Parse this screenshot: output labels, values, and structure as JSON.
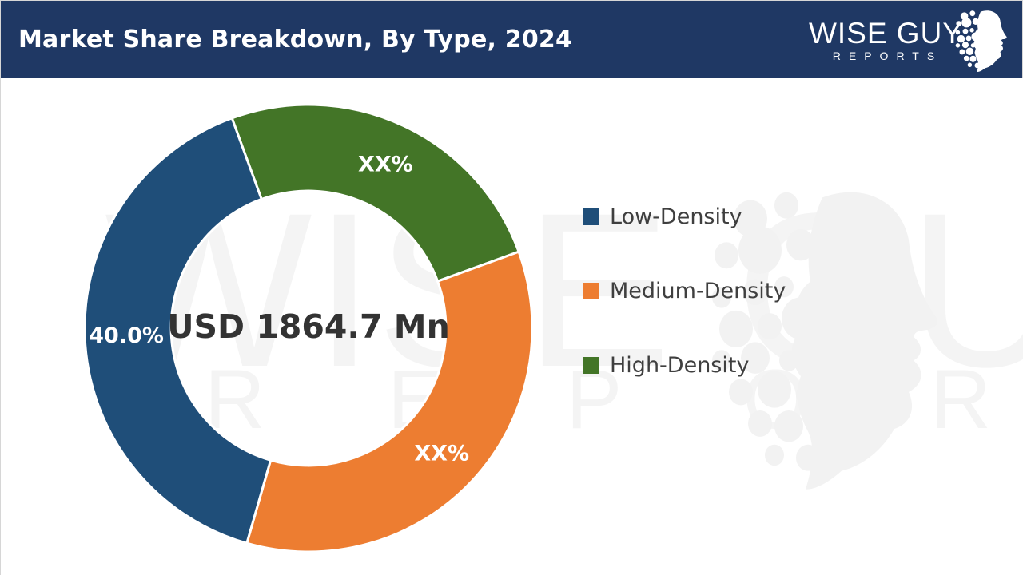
{
  "header": {
    "title": "Market Share Breakdown, By Type, 2024",
    "logo": {
      "line1": "WISE GUY",
      "line2": "REPORTS"
    }
  },
  "watermark": {
    "line1": "WISE GUY",
    "line2": "R E P O R T S"
  },
  "chart_data": {
    "type": "donut",
    "title": "Market Share Breakdown, By Type, 2024",
    "center_label": "USD 1864.7 Mn",
    "start_angle_deg": -20,
    "draw_order": [
      "High-Density",
      "Medium-Density",
      "Low-Density"
    ],
    "legend_position": "right",
    "segments": [
      {
        "label": "Low-Density",
        "value": 40.0,
        "display": "40.0%",
        "color": "#1F4E79"
      },
      {
        "label": "Medium-Density",
        "value": 35.0,
        "display": "XX%",
        "color": "#ED7D31"
      },
      {
        "label": "High-Density",
        "value": 25.0,
        "display": "XX%",
        "color": "#437527"
      }
    ]
  },
  "colors": {
    "header_bg": "#1F3864",
    "page_bg": "#FFFFFF",
    "center_text": "#333333",
    "legend_text": "#3F3F3F",
    "watermark": "#F4F4F4",
    "slice_gap": "#FFFFFF"
  }
}
